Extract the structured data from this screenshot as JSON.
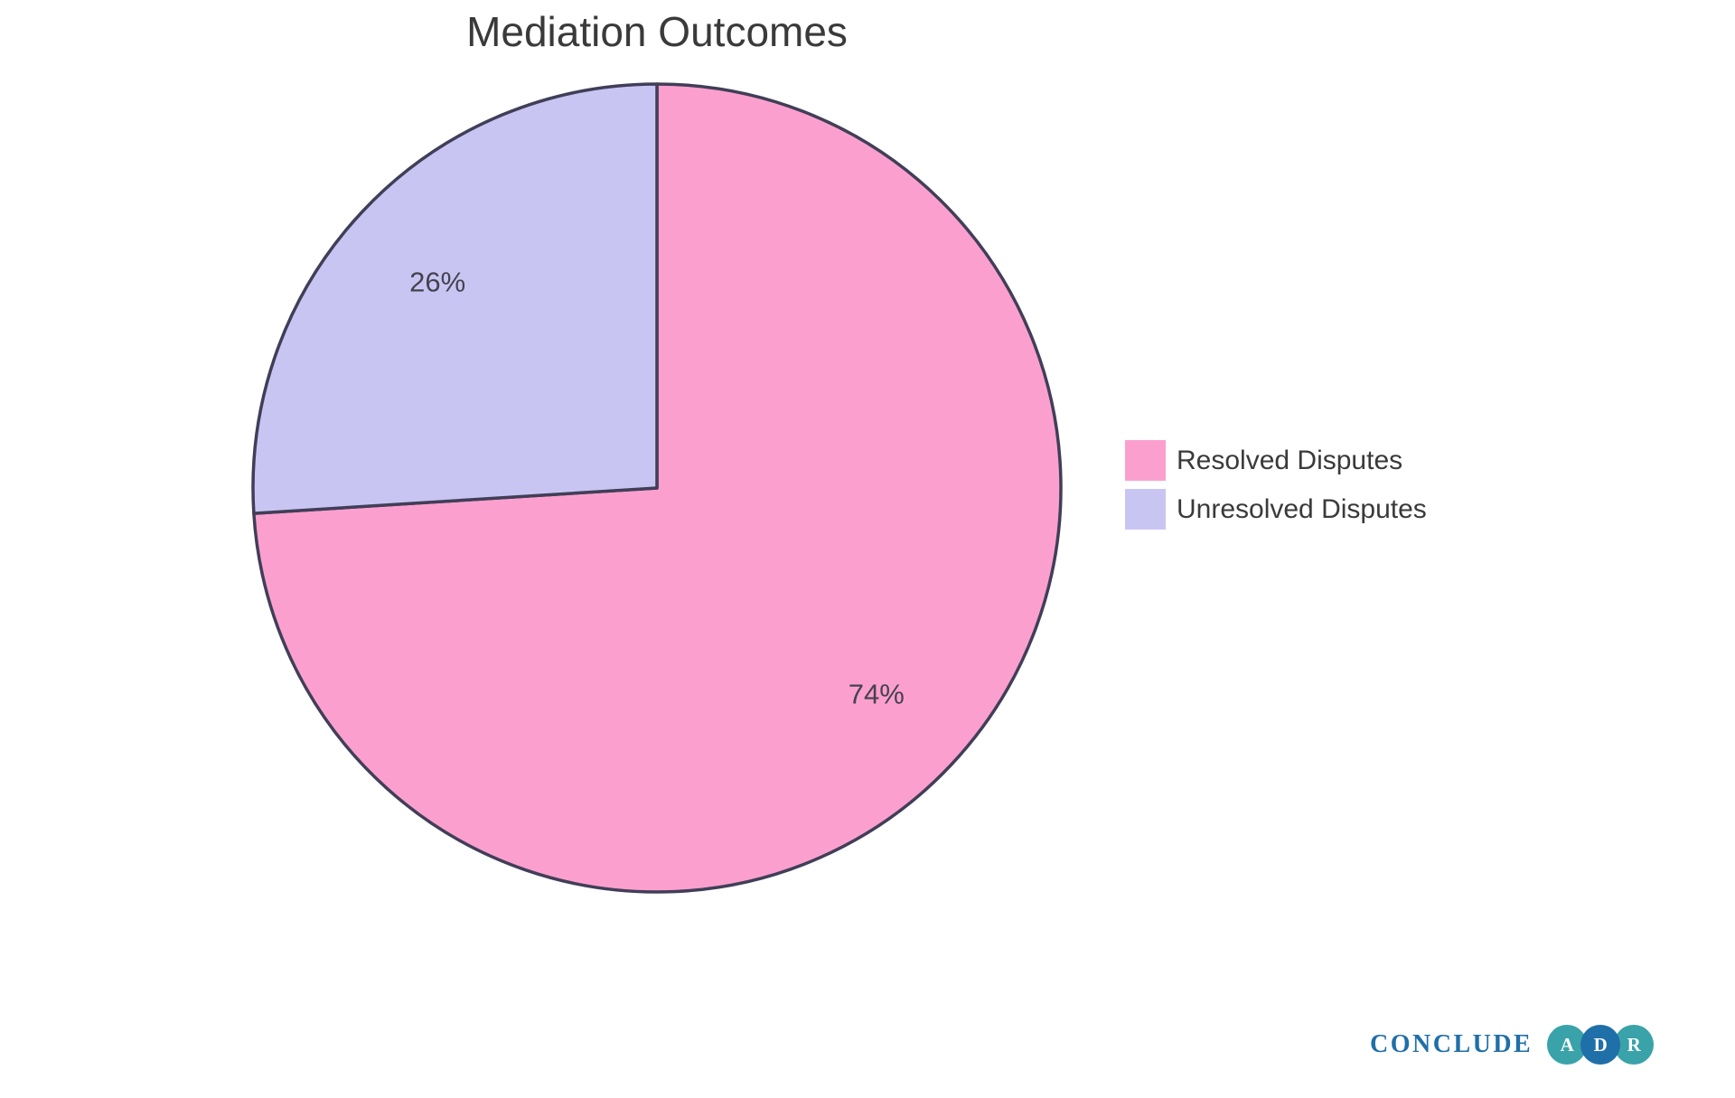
{
  "page": {
    "background_color": "#ffffff"
  },
  "chart_data": {
    "type": "pie",
    "title": "Mediation Outcomes",
    "labels": [
      "Resolved Disputes",
      "Unresolved Disputes"
    ],
    "values": [
      74,
      26
    ],
    "value_labels": [
      "74%",
      "26%"
    ],
    "colors": [
      "#FBA0CE",
      "#C9C5F3"
    ],
    "slice_border_color": "#413E58",
    "start_angle": "12-o-clock",
    "direction": "clockwise",
    "legend_position": "right",
    "title_color": "#3a3a3a",
    "value_label_color": "#45424f"
  },
  "legend": {
    "items": [
      {
        "label": "Resolved Disputes",
        "color": "#FBA0CE"
      },
      {
        "label": "Unresolved Disputes",
        "color": "#C9C5F3"
      }
    ]
  },
  "logo": {
    "wordmark": "CONCLUDE",
    "wordmark_color": "#1f6fa8",
    "badges": [
      {
        "letter": "A",
        "color": "#39a3a9"
      },
      {
        "letter": "D",
        "color": "#1f6fa8"
      },
      {
        "letter": "R",
        "color": "#39a3a9"
      }
    ],
    "badge_text_color": "#ffffff"
  }
}
